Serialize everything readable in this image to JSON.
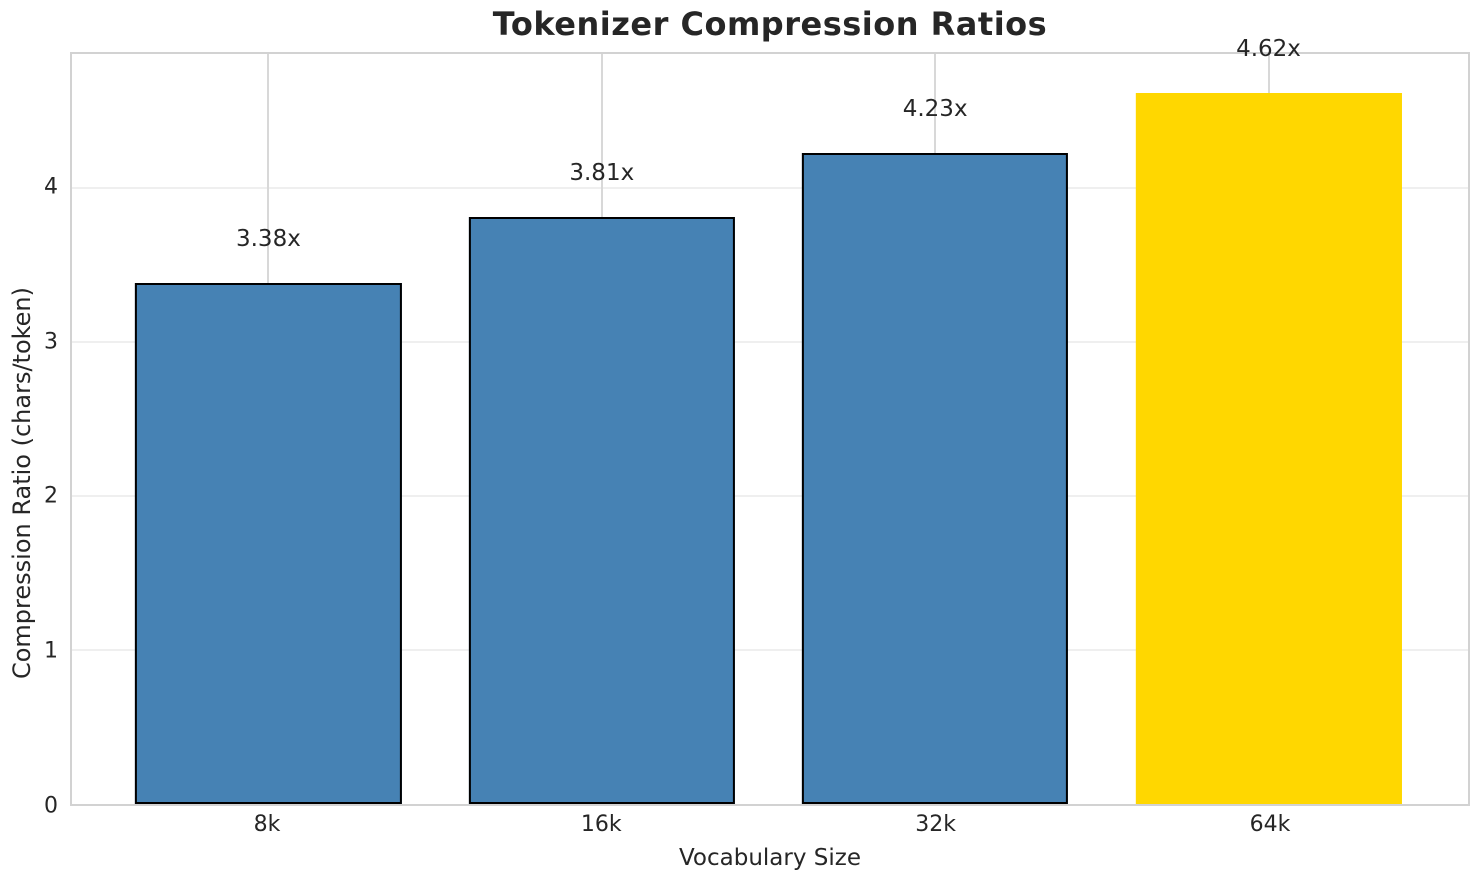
{
  "chart_data": {
    "type": "bar",
    "title": "Tokenizer Compression Ratios",
    "xlabel": "Vocabulary Size",
    "ylabel": "Compression Ratio (chars/token)",
    "categories": [
      "8k",
      "16k",
      "32k",
      "64k"
    ],
    "values": [
      3.38,
      3.81,
      4.23,
      4.62
    ],
    "bar_labels": [
      "3.38x",
      "3.81x",
      "4.23x",
      "4.62x"
    ],
    "bar_colors": [
      "#4682B4",
      "#4682B4",
      "#4682B4",
      "#FFD700"
    ],
    "bar_edge_colors": [
      "#000000",
      "#000000",
      "#000000",
      "#FFD700"
    ],
    "highlight_index": 3,
    "yticks": [
      0,
      1,
      2,
      3,
      4
    ],
    "ylim": [
      0,
      4.87
    ],
    "grid": true,
    "legend_position": "none",
    "colors": {
      "default_bar": "#4682B4",
      "highlight_bar": "#FFD700",
      "bar_edge": "#000000",
      "text": "#262626",
      "grid_horizontal": "#efefef",
      "grid_vertical": "#d8d8d8",
      "spine": "#d2d2d2",
      "background": "#ffffff"
    }
  }
}
